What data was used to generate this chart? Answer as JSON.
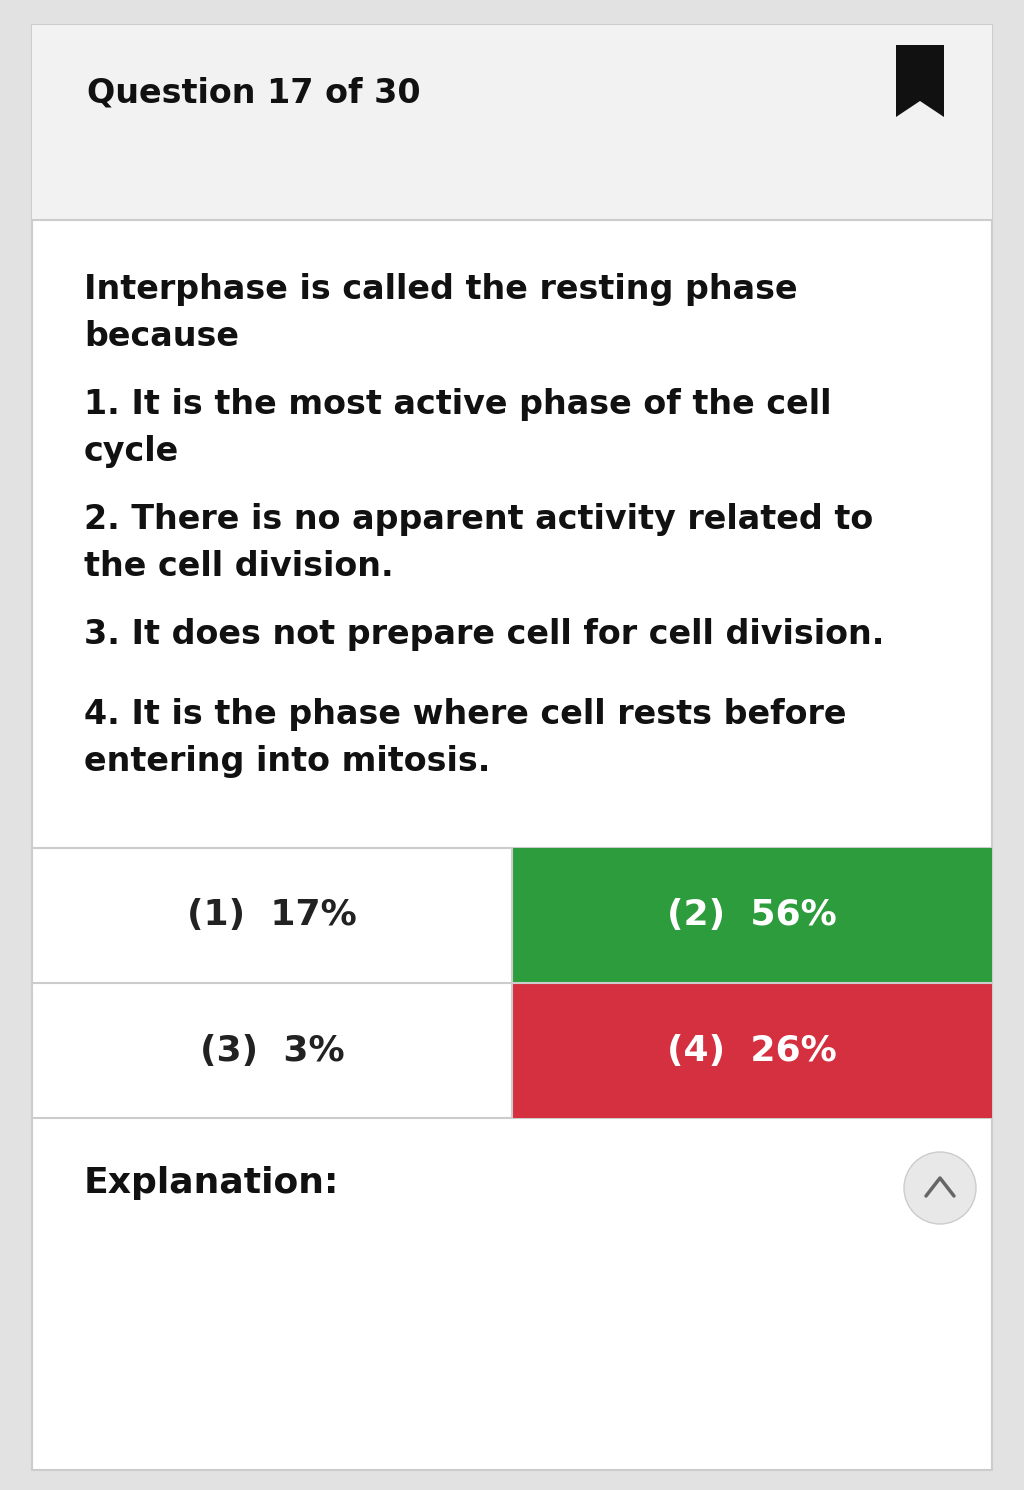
{
  "header_text": "Question 17 of 30",
  "header_bg": "#f2f2f2",
  "body_bg": "#ffffff",
  "question_text": "Interphase is called the resting phase\nbecause",
  "options": [
    "1. It is the most active phase of the cell\ncycle",
    "2. There is no apparent activity related to\nthe cell division.",
    "3. It does not prepare cell for cell division.",
    "4. It is the phase where cell rests before\nentering into mitosis."
  ],
  "explanation_text": "Explanation:",
  "outer_bg": "#e2e2e2",
  "card_bg": "#ffffff",
  "border_color": "#cccccc",
  "text_color": "#111111",
  "bookmark_color": "#111111",
  "grid_cells": [
    {
      "label": "(1)  17%",
      "bg": "#ffffff",
      "fg": "#222222"
    },
    {
      "label": "(2)  56%",
      "bg": "#2d9c3c",
      "fg": "#ffffff"
    },
    {
      "label": "(3)  3%",
      "bg": "#ffffff",
      "fg": "#222222"
    },
    {
      "label": "(4)  26%",
      "bg": "#d43040",
      "fg": "#ffffff"
    }
  ],
  "figw": 10.24,
  "figh": 14.9,
  "dpi": 100
}
